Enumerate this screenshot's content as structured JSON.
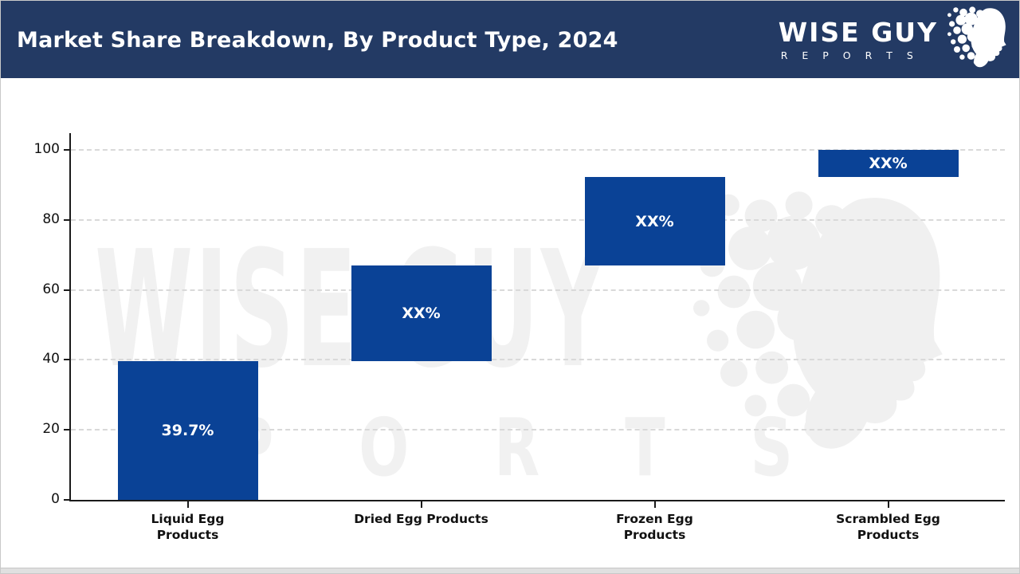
{
  "header": {
    "title": "Market Share Breakdown, By Product Type, 2024",
    "background": "#233a64",
    "logo": {
      "brand_top": "WISE GUY",
      "brand_bottom": "R E P O R T S"
    }
  },
  "watermark": {
    "line1": "WISE GUY",
    "line2": "P O R T S"
  },
  "chart_data": {
    "type": "bar",
    "subtype": "waterfall-floating-bars",
    "title": "Market Share Breakdown, By Product Type, 2024",
    "categories": [
      "Liquid Egg\nProducts",
      "Dried Egg Products",
      "Frozen Egg\nProducts",
      "Scrambled Egg\nProducts"
    ],
    "bars": [
      {
        "category": "Liquid Egg Products",
        "start": 0,
        "end": 39.7,
        "label": "39.7%"
      },
      {
        "category": "Dried Egg Products",
        "start": 39.7,
        "end": 66.9,
        "label": "XX%"
      },
      {
        "category": "Frozen Egg Products",
        "start": 66.9,
        "end": 92.2,
        "label": "XX%"
      },
      {
        "category": "Scrambled Egg Products",
        "start": 92.2,
        "end": 100,
        "label": "XX%"
      }
    ],
    "ylabel": "",
    "xlabel": "",
    "ylim": [
      0,
      104
    ],
    "yticks": [
      0,
      20,
      40,
      60,
      80,
      100
    ],
    "grid": "horizontal-dashed",
    "legend": "none",
    "bar_color": "#0a4296",
    "bar_label_color": "#ffffff",
    "grid_color": "#d9d9d9",
    "axis_color": "#1a1a1a"
  }
}
